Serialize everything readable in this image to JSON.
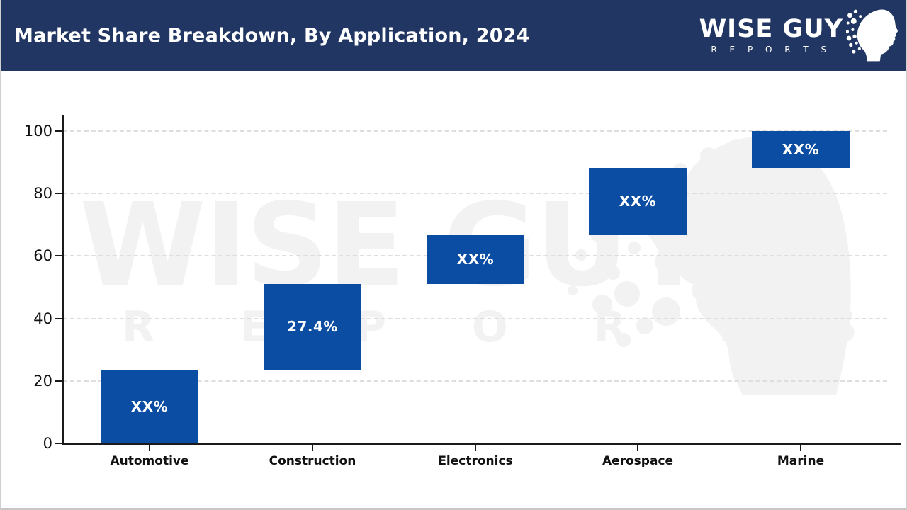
{
  "header": {
    "title": "Market Share Breakdown, By Application, 2024",
    "logo": {
      "name": "WISE GUY",
      "subtitle": "R E P O R T S"
    }
  },
  "watermark": {
    "line1": "WISE GUY",
    "line2": "R E P O R T S"
  },
  "chart_data": {
    "type": "bar",
    "subtype": "waterfall",
    "title": "Market Share Breakdown, By Application, 2024",
    "categories": [
      "Automotive",
      "Construction",
      "Electronics",
      "Aerospace",
      "Marine"
    ],
    "segments": [
      {
        "category": "Automotive",
        "start": 0,
        "end": 23.6,
        "label": "XX%"
      },
      {
        "category": "Construction",
        "start": 23.6,
        "end": 51.0,
        "label": "27.4%"
      },
      {
        "category": "Electronics",
        "start": 51.0,
        "end": 66.7,
        "label": "XX%"
      },
      {
        "category": "Aerospace",
        "start": 66.7,
        "end": 88.2,
        "label": "XX%"
      },
      {
        "category": "Marine",
        "start": 88.2,
        "end": 100.0,
        "label": "XX%"
      }
    ],
    "xlabel": "",
    "ylabel": "",
    "yticks": [
      0,
      20,
      40,
      60,
      80,
      100
    ],
    "ylim": [
      0,
      105
    ],
    "grid": "dashed-horizontal",
    "legend": "none"
  },
  "colors": {
    "header_bg": "#213662",
    "bar": "#0b4da2",
    "bar_label": "#ffffff",
    "axis": "#1a1a1a",
    "grid": "#dedede",
    "watermark": "#f2f2f2",
    "page_bg": "#ffffff"
  }
}
